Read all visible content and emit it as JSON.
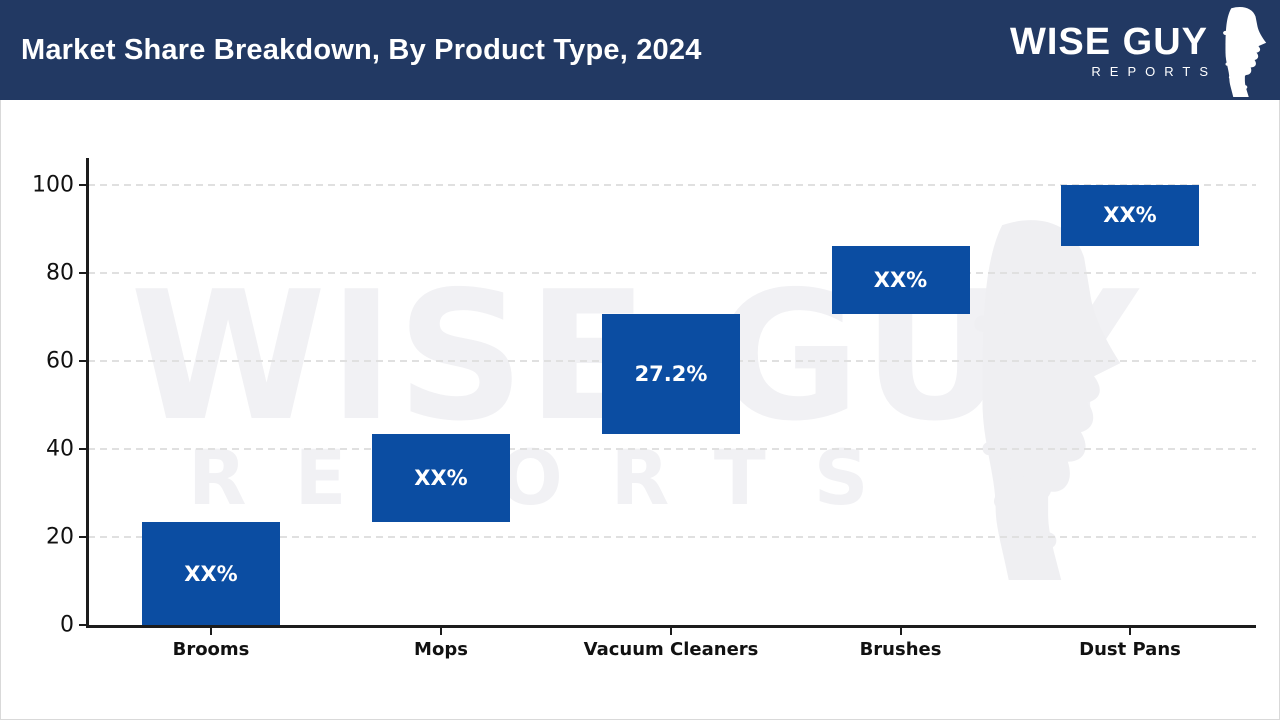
{
  "header": {
    "title": "Market Share Breakdown, By Product Type, 2024",
    "logo": {
      "wordmark": "WISE GUY",
      "subtext": "REPORTS"
    }
  },
  "watermark": {
    "line1": "WISE GUY",
    "line2": "REPORTS"
  },
  "colors": {
    "header_navy": "#223963",
    "bar_blue": "#0b4da2",
    "bar_label_white": "#ffffff",
    "watermark_gray": "#f1f1f4",
    "grid_gray": "#e0e0e0",
    "axis_black": "#1c1c1c"
  },
  "chart_data": {
    "type": "bar",
    "subtype": "waterfall",
    "title": "Market Share Breakdown, By Product Type, 2024",
    "categories": [
      "Brooms",
      "Mops",
      "Vacuum Cleaners",
      "Brushes",
      "Dust Pans"
    ],
    "segments": [
      {
        "category": "Brooms",
        "start": 0,
        "end": 23.4,
        "value_est": 23.4,
        "label": "XX%"
      },
      {
        "category": "Mops",
        "start": 23.4,
        "end": 43.4,
        "value_est": 20.0,
        "label": "XX%"
      },
      {
        "category": "Vacuum Cleaners",
        "start": 43.4,
        "end": 70.6,
        "value_est": 27.2,
        "label": "27.2%"
      },
      {
        "category": "Brushes",
        "start": 70.6,
        "end": 86.2,
        "value_est": 15.6,
        "label": "XX%"
      },
      {
        "category": "Dust Pans",
        "start": 86.2,
        "end": 100,
        "value_est": 13.8,
        "label": "XX%"
      }
    ],
    "y_ticks": [
      0,
      20,
      40,
      60,
      80,
      100
    ],
    "ylim": [
      0,
      106
    ],
    "xlabel": "",
    "ylabel": "",
    "grid": "horizontal dashed",
    "legend": "none",
    "bar_color": "#0b4da2",
    "label_color": "#ffffff"
  }
}
